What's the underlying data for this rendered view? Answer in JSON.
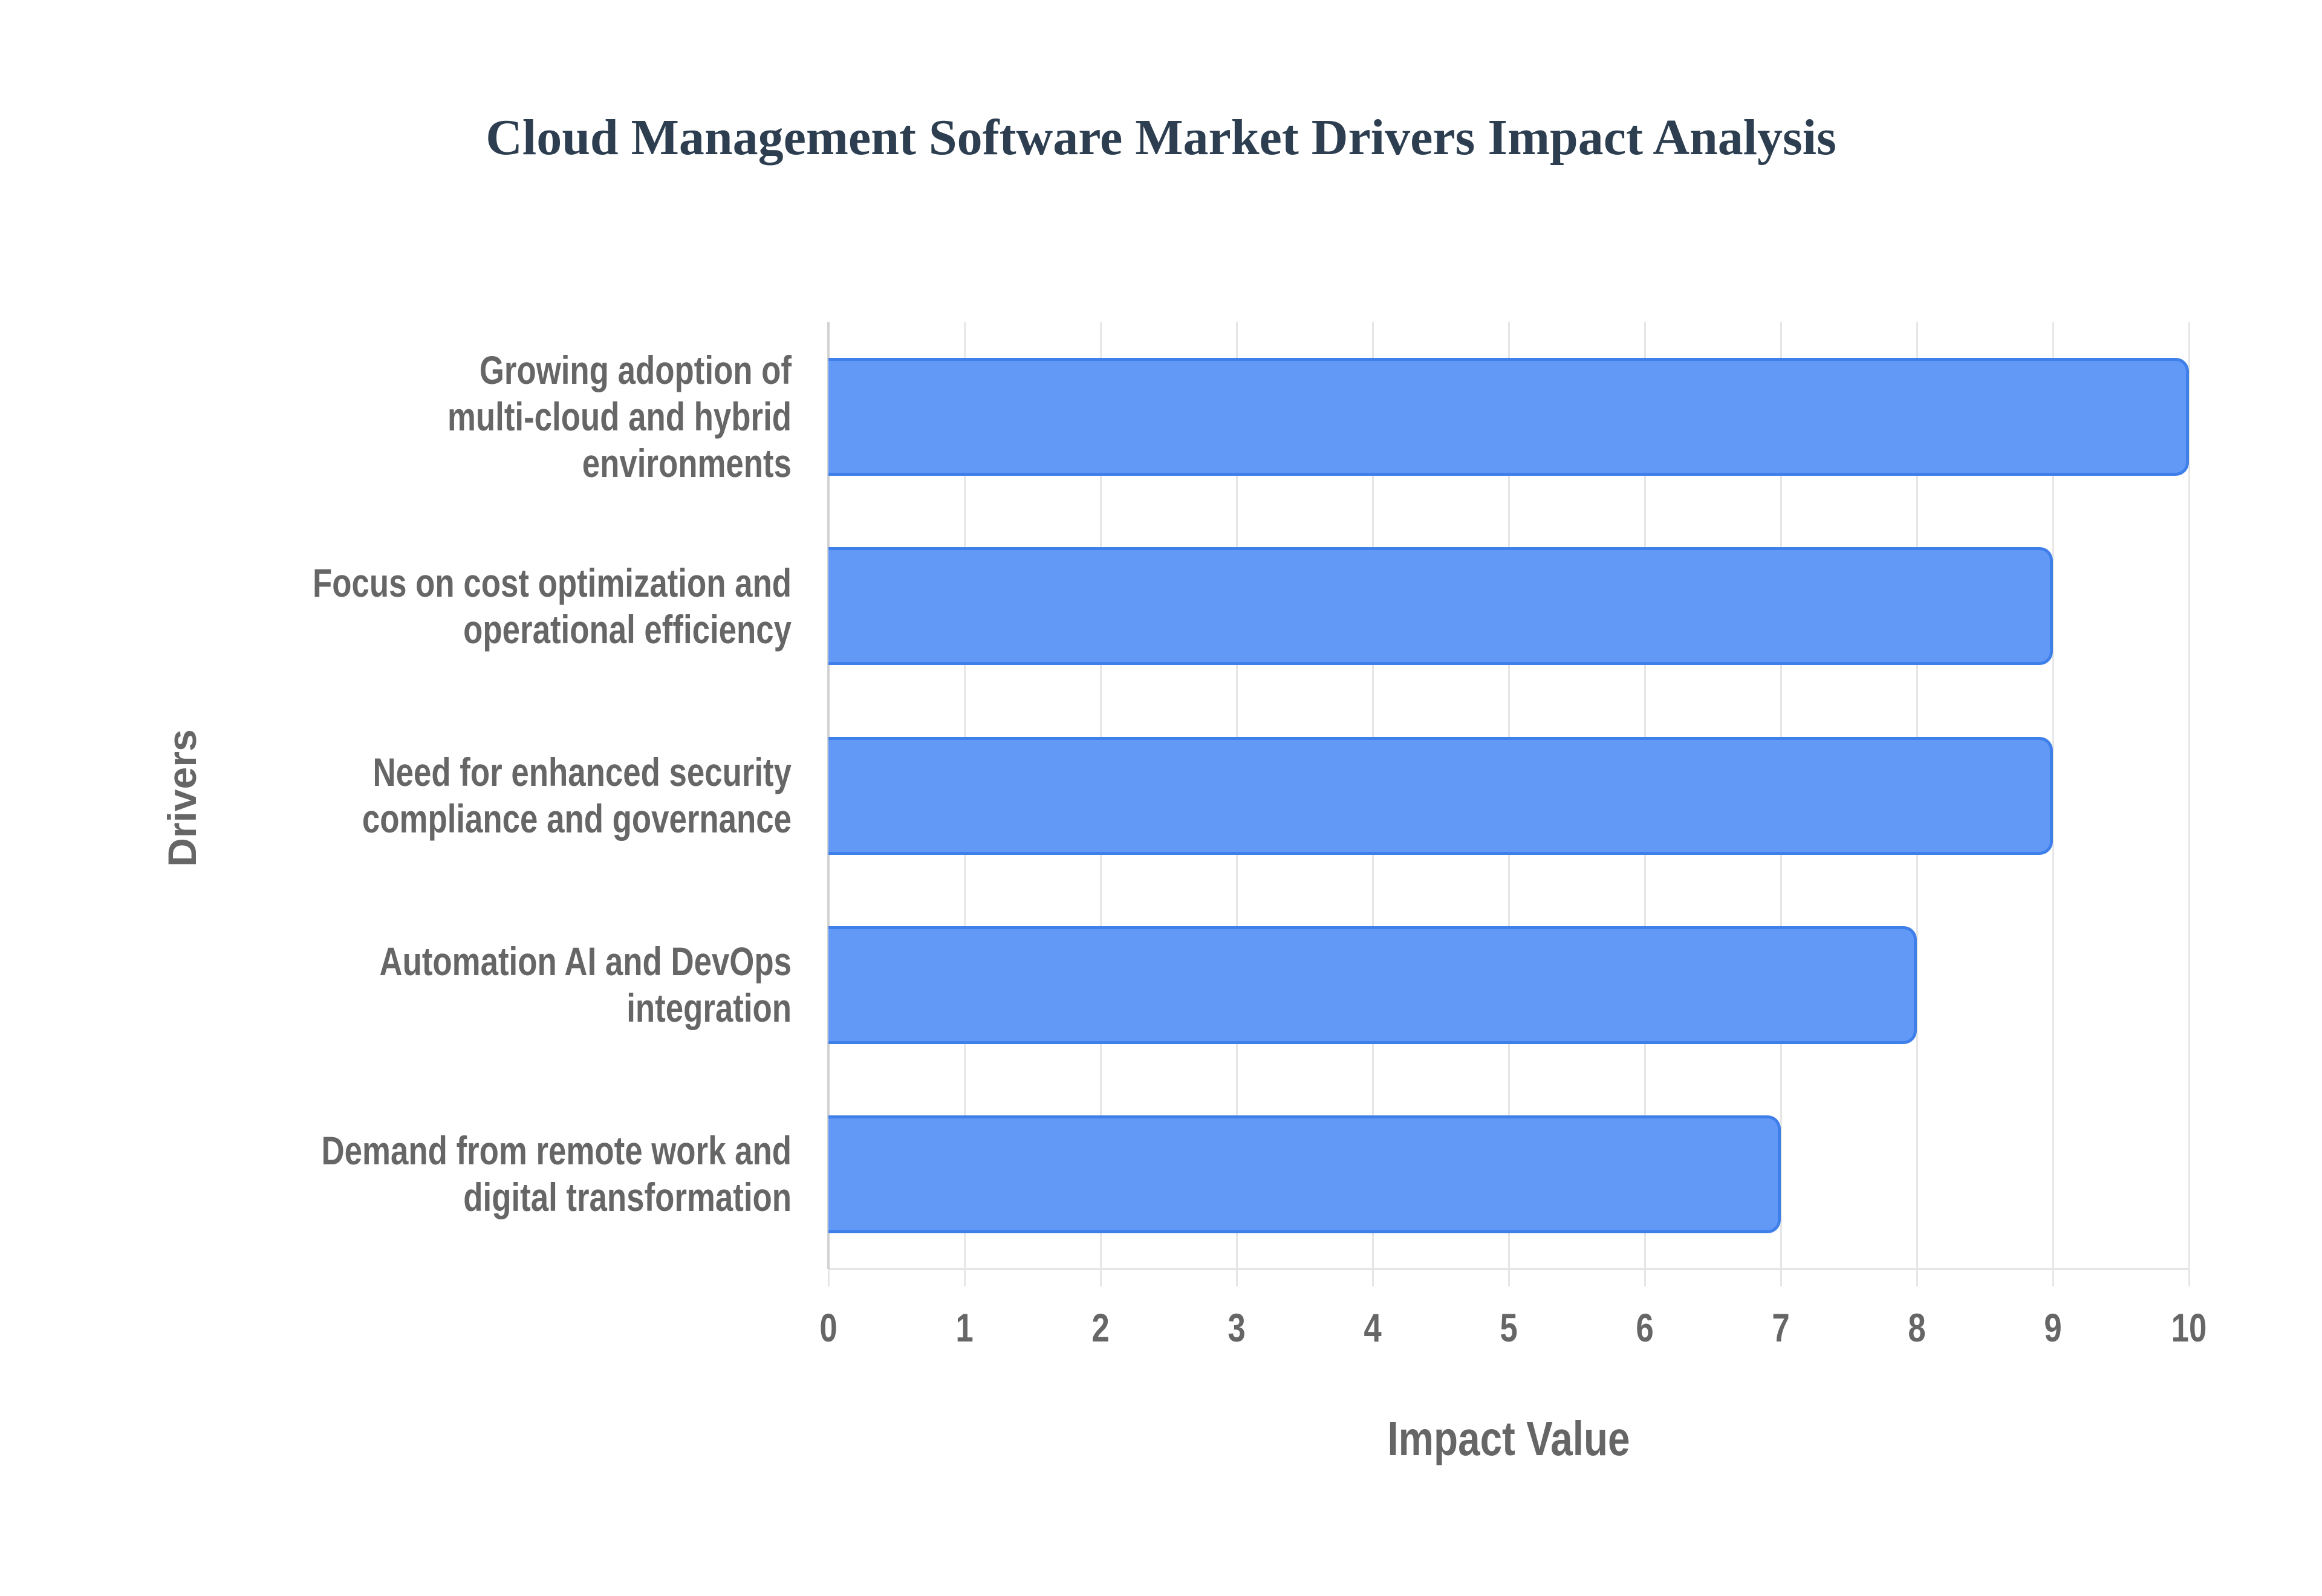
{
  "title": "Cloud Management Software Market Drivers Impact Analysis",
  "colors": {
    "title": "#2C3E50",
    "bar_fill": "#6399F6",
    "bar_border": "#3F7FEA",
    "axis_text": "#666666",
    "grid": "#E6E6E6",
    "background": "#FFFFFF"
  },
  "axes": {
    "x_title": "Impact Value",
    "y_title": "Drivers",
    "x_ticks": [
      "0",
      "1",
      "2",
      "3",
      "4",
      "5",
      "6",
      "7",
      "8",
      "9",
      "10"
    ]
  },
  "bars": [
    {
      "lines": [
        "Growing adoption of",
        "multi-cloud and hybrid",
        "environments"
      ],
      "value": 10
    },
    {
      "lines": [
        "Focus on cost optimization and",
        "operational efficiency"
      ],
      "value": 9
    },
    {
      "lines": [
        "Need for enhanced security",
        "compliance and governance"
      ],
      "value": 9
    },
    {
      "lines": [
        "Automation AI and DevOps",
        "integration"
      ],
      "value": 8
    },
    {
      "lines": [
        "Demand from remote work and",
        "digital transformation"
      ],
      "value": 7
    }
  ],
  "chart_data": {
    "type": "bar",
    "orientation": "horizontal",
    "title": "Cloud Management Software Market Drivers Impact Analysis",
    "categories": [
      "Growing adoption of multi-cloud and hybrid environments",
      "Focus on cost optimization and operational efficiency",
      "Need for enhanced security compliance and governance",
      "Automation AI and DevOps integration",
      "Demand from remote work and digital transformation"
    ],
    "values": [
      10,
      9,
      9,
      8,
      7
    ],
    "xlabel": "Impact Value",
    "ylabel": "Drivers",
    "xlim": [
      0,
      10
    ],
    "x_ticks": [
      0,
      1,
      2,
      3,
      4,
      5,
      6,
      7,
      8,
      9,
      10
    ],
    "grid": true,
    "legend": null
  }
}
